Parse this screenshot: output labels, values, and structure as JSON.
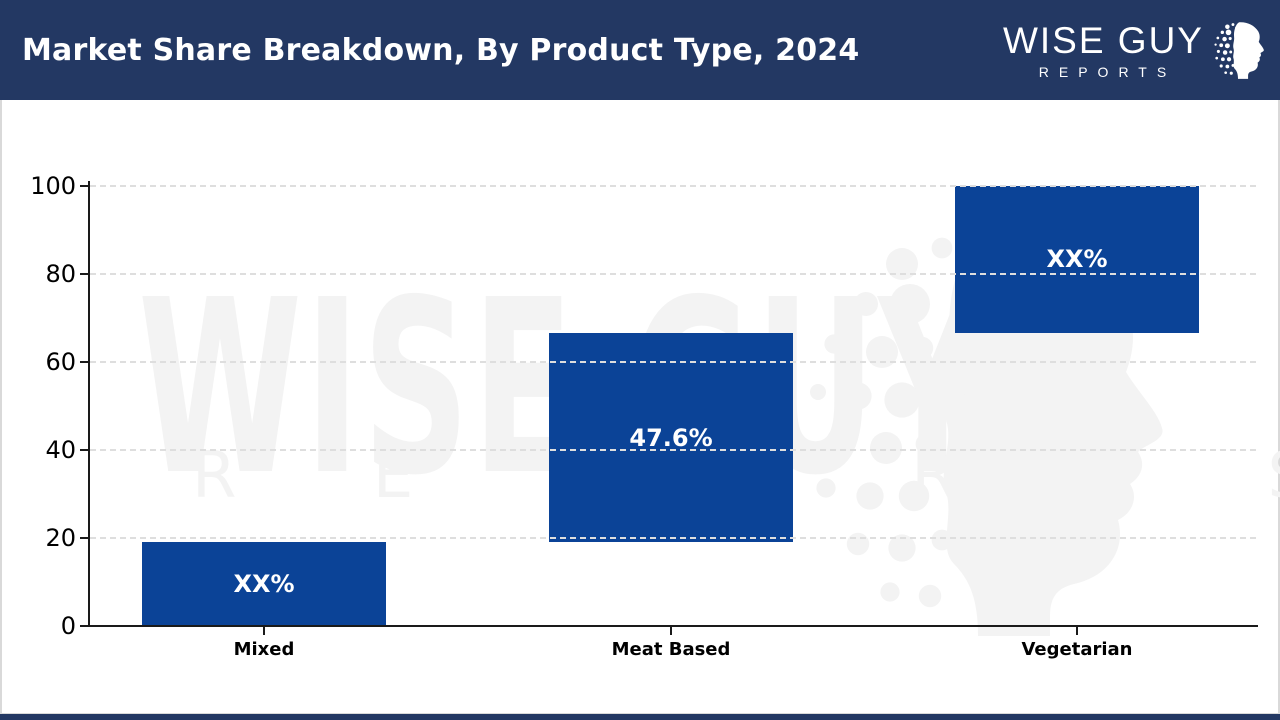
{
  "header": {
    "title": "Market Share Breakdown, By Product Type, 2024",
    "logo": {
      "line1": "WISE GUY",
      "line2": "REPORTS"
    }
  },
  "watermark": {
    "line1": "WISE GUY",
    "line2": "R E P O R T S"
  },
  "chart_data": {
    "type": "bar",
    "variant": "waterfall-stacked",
    "title": "Market Share Breakdown, By Product Type, 2024",
    "categories": [
      "Mixed",
      "Meat Based",
      "Vegetarian"
    ],
    "bases": [
      0,
      19.0,
      66.6
    ],
    "values": [
      19.0,
      47.6,
      33.4
    ],
    "bar_labels": [
      "XX%",
      "47.6%",
      "XX%"
    ],
    "yticks": [
      0,
      20,
      40,
      60,
      80,
      100
    ],
    "ylim": [
      0,
      101
    ],
    "xlabel": "",
    "ylabel": "",
    "grid": "dashed-horizontal-over-bars",
    "legend": "none",
    "bar_color": "#0b4397",
    "bar_label_color": "#ffffff"
  },
  "colors": {
    "header_bg": "#233863",
    "footer_bg": "#233863",
    "bar": "#0b4397",
    "gridline": "#dedede",
    "axis": "#1a1a1a",
    "watermark": "#f3f3f3",
    "frame_line": "#d9d9d9"
  }
}
